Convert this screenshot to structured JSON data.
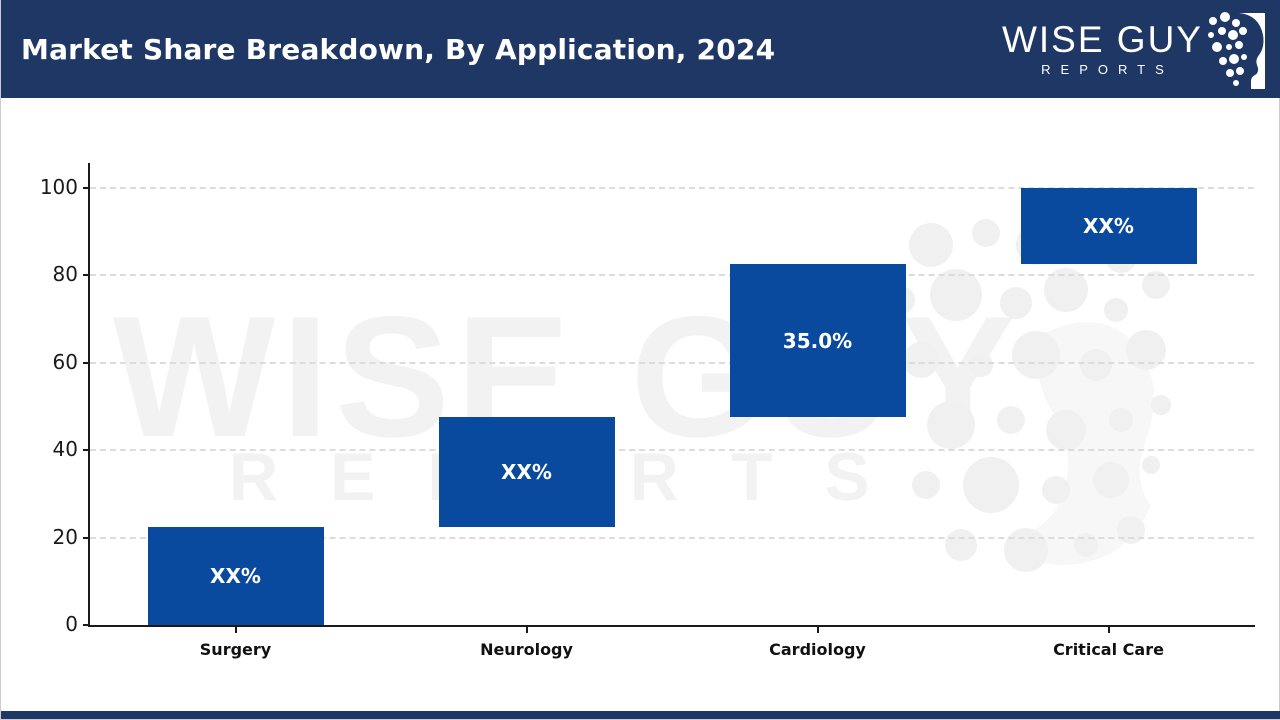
{
  "header": {
    "title": "Market Share Breakdown, By Application, 2024",
    "logo": {
      "line1": "WISE GUY",
      "line2": "REPORTS"
    }
  },
  "watermark": {
    "line1": "WISE GUY",
    "line2": "REPORTS"
  },
  "chart_data": {
    "type": "bar",
    "subtype": "floating-waterfall",
    "title": "Market Share Breakdown, By Application, 2024",
    "categories": [
      "Surgery",
      "Neurology",
      "Cardiology",
      "Critical Care"
    ],
    "segments": [
      {
        "category": "Surgery",
        "start": 0,
        "end": 22.5,
        "label": "XX%"
      },
      {
        "category": "Neurology",
        "start": 22.5,
        "end": 47.5,
        "label": "XX%"
      },
      {
        "category": "Cardiology",
        "start": 47.5,
        "end": 82.5,
        "label": "35.0%"
      },
      {
        "category": "Critical Care",
        "start": 82.5,
        "end": 100,
        "label": "XX%"
      }
    ],
    "xlabel": "",
    "ylabel": "",
    "yticks": [
      0,
      20,
      40,
      60,
      80,
      100
    ],
    "ylim": [
      0,
      105.5
    ],
    "grid": "horizontal-dashed",
    "legend": "none",
    "colors": {
      "bar": "#094a9e",
      "bar_label": "#ffffff",
      "header_bg": "#1f3765",
      "footer_bg": "#1f3765",
      "gridline": "#dcdcdc",
      "axis": "#1a1a1a",
      "watermark": "#f2f2f2"
    }
  }
}
